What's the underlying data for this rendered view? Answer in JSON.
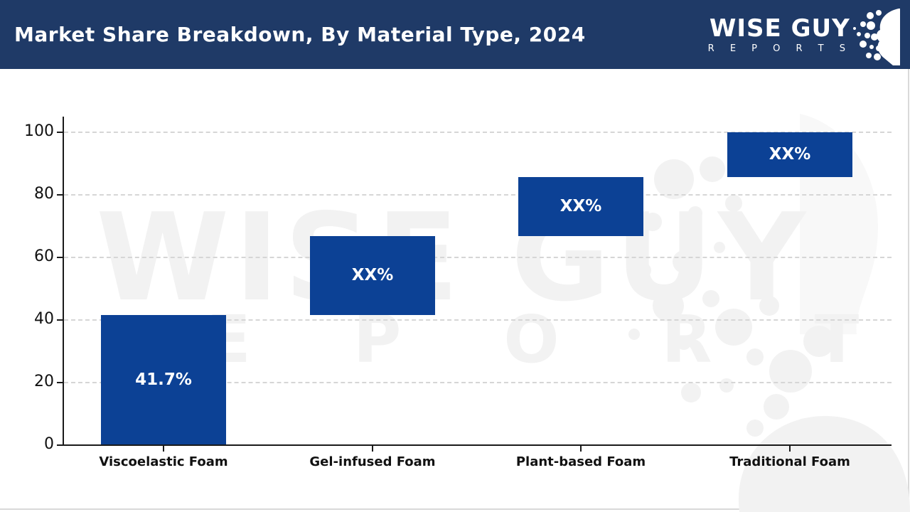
{
  "header": {
    "title": "Market Share Breakdown, By Material Type, 2024",
    "logo": {
      "line1": "WISE GUY",
      "line2": "R E P O R T S"
    }
  },
  "watermark": {
    "line1": "WISE GUY",
    "line2": "E P O R T S"
  },
  "colors": {
    "header_bg": "#1f3a67",
    "bar": "#0c4195",
    "bar_label": "#ffffff",
    "grid": "#d6d6d6",
    "axis": "#1a1a1a",
    "watermark": "#f2f2f2"
  },
  "chart_data": {
    "type": "bar",
    "subtype": "waterfall",
    "title": "Market Share Breakdown, By Material Type, 2024",
    "categories": [
      "Viscoelastic Foam",
      "Gel-infused Foam",
      "Plant-based Foam",
      "Traditional Foam"
    ],
    "segments": [
      {
        "category": "Viscoelastic Foam",
        "start": 0,
        "end": 41.7,
        "label": "41.7%"
      },
      {
        "category": "Gel-infused Foam",
        "start": 41.7,
        "end": 66.8,
        "label": "XX%"
      },
      {
        "category": "Plant-based Foam",
        "start": 66.8,
        "end": 85.7,
        "label": "XX%"
      },
      {
        "category": "Traditional Foam",
        "start": 85.7,
        "end": 100,
        "label": "XX%"
      }
    ],
    "xlabel": "",
    "ylabel": "",
    "ylim": [
      0,
      100
    ],
    "yticks": [
      0,
      20,
      40,
      60,
      80,
      100
    ],
    "grid": "horizontal-dashed",
    "legend": null
  }
}
